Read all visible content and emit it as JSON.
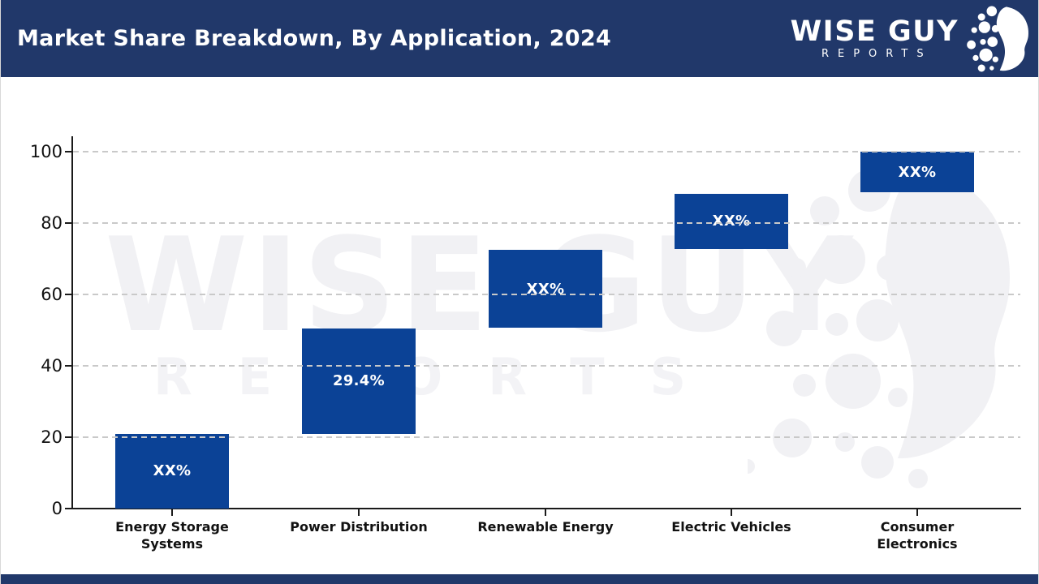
{
  "header": {
    "title": "Market Share Breakdown, By Application, 2024",
    "logo": {
      "wordmark": "WISE GUY",
      "subtext": "REPORTS"
    }
  },
  "watermark": {
    "line1": "WISE GUY",
    "line2": "REPORTS"
  },
  "colors": {
    "header_bg": "#21386a",
    "footer_bg": "#21386a",
    "bar": "#0b4296",
    "bar_label": "#ffffff",
    "axis": "#1a1a1a",
    "gridline": "#c9c9c9",
    "tick_label": "#111111",
    "watermark": "#f1f1f4",
    "title_text": "#ffffff"
  },
  "chart_data": {
    "type": "bar",
    "subtype": "waterfall-floating-segments",
    "title": "Market Share Breakdown, By Application, 2024",
    "categories": [
      "Energy Storage Systems",
      "Power Distribution",
      "Renewable Energy",
      "Electric Vehicles",
      "Consumer Electronics"
    ],
    "segments": [
      {
        "category": "Energy Storage Systems",
        "label_lines": [
          "Energy Storage",
          "Systems"
        ],
        "start": 0,
        "end": 21.0,
        "value_label": "XX%"
      },
      {
        "category": "Power Distribution",
        "label_lines": [
          "Power Distribution"
        ],
        "start": 21.0,
        "end": 50.4,
        "value_label": "29.4%"
      },
      {
        "category": "Renewable Energy",
        "label_lines": [
          "Renewable Energy"
        ],
        "start": 50.6,
        "end": 72.4,
        "value_label": "XX%"
      },
      {
        "category": "Electric Vehicles",
        "label_lines": [
          "Electric Vehicles"
        ],
        "start": 72.8,
        "end": 88.2,
        "value_label": "XX%"
      },
      {
        "category": "Consumer Electronics",
        "label_lines": [
          "Consumer",
          "Electronics"
        ],
        "start": 88.6,
        "end": 100.0,
        "value_label": "XX%"
      }
    ],
    "y_ticks": [
      0,
      20,
      40,
      60,
      80,
      100
    ],
    "y_tick_labels": [
      "0",
      "20",
      "40",
      "60",
      "80",
      "100"
    ],
    "ylim": [
      0,
      104
    ],
    "xlabel": "",
    "ylabel": "",
    "grid": "horizontal-dashed-above-bars",
    "legend": "none"
  }
}
